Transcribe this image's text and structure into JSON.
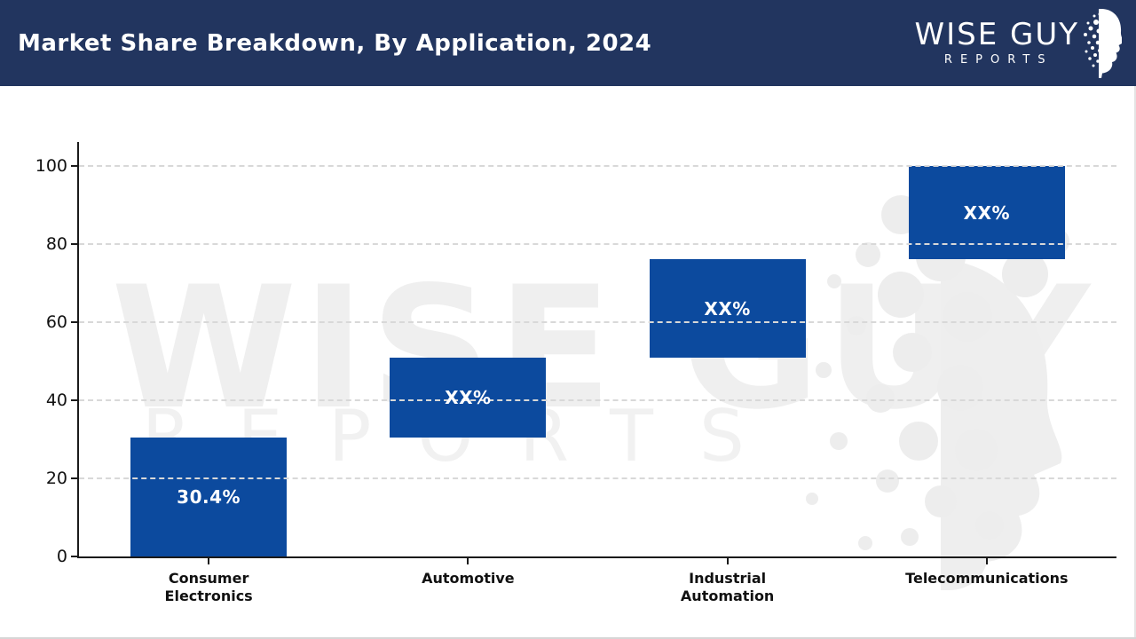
{
  "header": {
    "title": "Market Share Breakdown, By Application, 2024",
    "logo": {
      "line1": "WISE GUY",
      "line2": "REPORTS"
    }
  },
  "watermark": {
    "line1": "WISE GUY",
    "line2": "REPORTS"
  },
  "chart_data": {
    "type": "bar",
    "subtype": "waterfall-floating-bars",
    "title": "Market Share Breakdown, By Application, 2024",
    "xlabel": "",
    "ylabel": "",
    "categories": [
      "Consumer\nElectronics",
      "Automotive",
      "Industrial\nAutomation",
      "Telecommunications"
    ],
    "segments": [
      {
        "category": "Consumer Electronics",
        "base": 0,
        "top": 30.4,
        "value": 30.4,
        "label": "30.4%"
      },
      {
        "category": "Automotive",
        "base": 30.4,
        "top": 50.9,
        "value": 20.5,
        "label": "XX%"
      },
      {
        "category": "Industrial Automation",
        "base": 50.9,
        "top": 76.1,
        "value": 25.2,
        "label": "XX%"
      },
      {
        "category": "Telecommunications",
        "base": 76.1,
        "top": 100,
        "value": 23.9,
        "label": "XX%"
      }
    ],
    "yticks": [
      0,
      20,
      40,
      60,
      80,
      100
    ],
    "ylim": [
      0,
      106
    ],
    "grid": "dashed-horizontal-over-bars",
    "legend": "none",
    "bar_color": "#0c4a9e",
    "bar_label_color": "#ffffff",
    "grid_color": "#d8d8d8",
    "axis_color": "#1a1a1a",
    "header_color": "#22355f",
    "watermark_color": "#efefef"
  }
}
